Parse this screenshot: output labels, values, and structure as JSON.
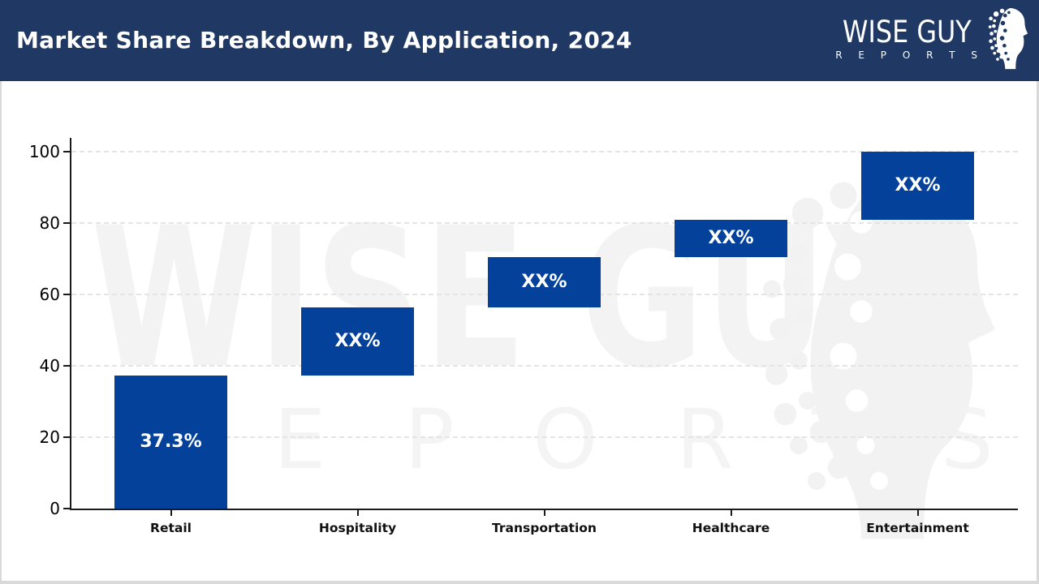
{
  "header": {
    "title": "Market Share Breakdown, By Application, 2024",
    "logo": {
      "name": "WISE GUY",
      "sub": "R E P O R T S"
    }
  },
  "watermark": {
    "name": "WISE GUY",
    "sub": "R E P O R T S"
  },
  "colors": {
    "header_bg": "#1f3864",
    "bar_fill": "#04419a",
    "bar_label": "#ffffff",
    "axis": "#1a1a1a",
    "gridline": "#e4e4e4",
    "watermark_text": "#f3f3f3",
    "page_border": "#d9d9d9"
  },
  "chart_data": {
    "type": "bar",
    "variant": "waterfall",
    "title": "Market Share Breakdown, By Application, 2024",
    "xlabel": "",
    "ylabel": "",
    "ylim": [
      0,
      104
    ],
    "yticks": [
      0,
      20,
      40,
      60,
      80,
      100
    ],
    "grid": "horizontal-dashed",
    "legend": "none",
    "categories": [
      "Retail",
      "Hospitality",
      "Transportation",
      "Healthcare",
      "Entertainment"
    ],
    "series": [
      {
        "category": "Retail",
        "label": "37.3%",
        "start": 0,
        "end": 37.3
      },
      {
        "category": "Hospitality",
        "label": "XX%",
        "start": 37.3,
        "end": 56.4
      },
      {
        "category": "Transportation",
        "label": "XX%",
        "start": 56.4,
        "end": 70.5
      },
      {
        "category": "Healthcare",
        "label": "XX%",
        "start": 70.5,
        "end": 81
      },
      {
        "category": "Entertainment",
        "label": "XX%",
        "start": 81,
        "end": 100
      }
    ]
  }
}
